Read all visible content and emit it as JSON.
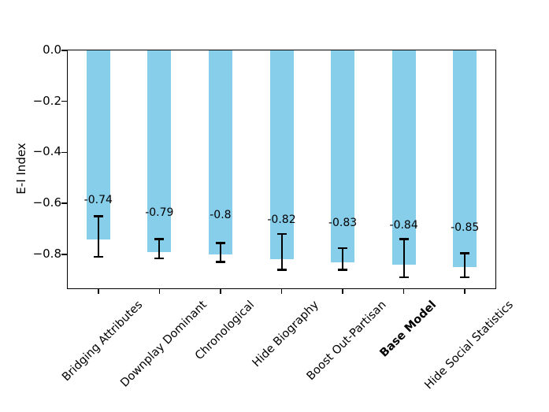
{
  "chart_data": {
    "type": "bar",
    "title": "",
    "ylabel": "E-I Index",
    "xlabel": "",
    "categories": [
      "Bridging Attributes",
      "Downplay Dominant",
      "Chronological",
      "Hide Biography",
      "Boost Out-Partisan",
      "Base Model",
      "Hide Social Statistics"
    ],
    "values": [
      -0.74,
      -0.79,
      -0.8,
      -0.82,
      -0.83,
      -0.84,
      -0.85
    ],
    "bar_value_labels": [
      "-0.74",
      "-0.79",
      "-0.8",
      "-0.82",
      "-0.83",
      "-0.84",
      "-0.85"
    ],
    "error_ci_high": [
      -0.65,
      -0.74,
      -0.755,
      -0.72,
      -0.775,
      -0.74,
      -0.795
    ],
    "error_ci_low": [
      -0.81,
      -0.815,
      -0.83,
      -0.86,
      -0.86,
      -0.89,
      -0.89
    ],
    "emphasized_category": "Base Model",
    "ytick_values": [
      0.0,
      -0.2,
      -0.4,
      -0.6,
      -0.8
    ],
    "ytick_labels": [
      "0.0",
      "−0.2",
      "−0.4",
      "−0.6",
      "−0.8"
    ],
    "ylim": [
      -0.933,
      0.0
    ],
    "grid": false,
    "legend": null,
    "bar_color": "#87CEEB",
    "error_color": "#000000",
    "axis_color": "#000000",
    "text_color": "#000000"
  }
}
